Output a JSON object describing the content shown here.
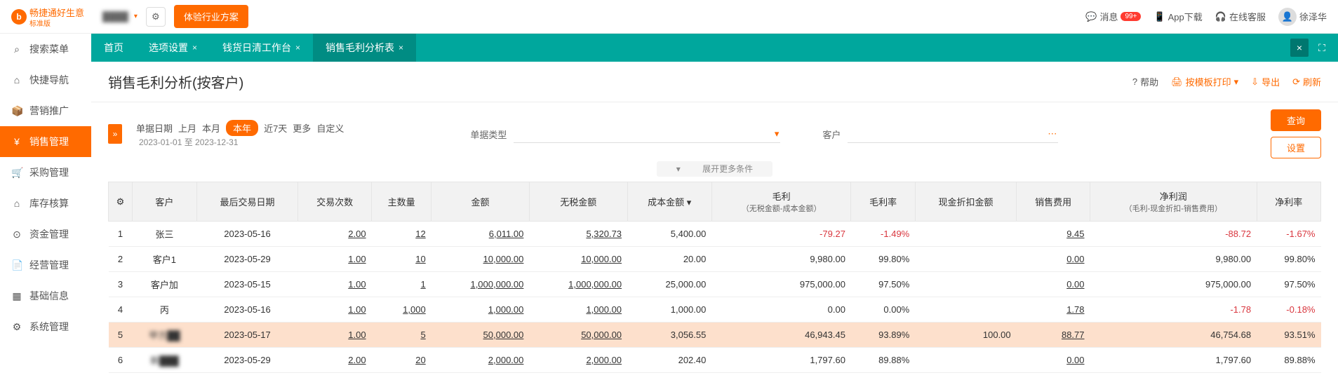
{
  "brand": {
    "name": "畅捷通好生意",
    "edition": "标准版",
    "mark": "b"
  },
  "org": {
    "name": "████"
  },
  "cta": "体验行业方案",
  "topbar": {
    "msg": "消息",
    "msg_badge": "99+",
    "app": "App下载",
    "support": "在线客服",
    "user": "徐泽华"
  },
  "sidebar": [
    {
      "icon": "⌕",
      "label": "搜索菜单"
    },
    {
      "icon": "⌂",
      "label": "快捷导航"
    },
    {
      "icon": "📦",
      "label": "营销推广"
    },
    {
      "icon": "¥",
      "label": "销售管理",
      "active": true
    },
    {
      "icon": "🛒",
      "label": "采购管理"
    },
    {
      "icon": "⌂",
      "label": "库存核算"
    },
    {
      "icon": "⊙",
      "label": "资金管理"
    },
    {
      "icon": "📄",
      "label": "经营管理"
    },
    {
      "icon": "▦",
      "label": "基础信息"
    },
    {
      "icon": "⚙",
      "label": "系统管理"
    }
  ],
  "tabs": {
    "items": [
      {
        "label": "首页",
        "closable": false
      },
      {
        "label": "选项设置",
        "closable": true
      },
      {
        "label": "钱货日清工作台",
        "closable": true
      },
      {
        "label": "销售毛利分析表",
        "closable": true,
        "active": true
      }
    ]
  },
  "page": {
    "title": "销售毛利分析(按客户)",
    "tools": {
      "help": "帮助",
      "print": "按模板打印",
      "export": "导出",
      "refresh": "刷新"
    }
  },
  "filters": {
    "date_label": "单据日期",
    "quick": {
      "last_month": "上月",
      "this_month": "本月",
      "this_year": "本年",
      "last7": "近7天",
      "more": "更多",
      "custom": "自定义"
    },
    "date_range": "2023-01-01 至 2023-12-31",
    "doc_type_label": "单据类型",
    "client_label": "客户",
    "query": "查询",
    "setup": "设置",
    "expand": "展开更多条件"
  },
  "table": {
    "columns": {
      "gear": "⚙",
      "client": "客户",
      "last_date": "最后交易日期",
      "txn_cnt": "交易次数",
      "main_qty": "主数量",
      "amount": "金额",
      "amount_notax": "无税金额",
      "cost": "成本金额",
      "gross": "毛利",
      "gross_sub": "（无税金额-成本金额）",
      "gross_rate": "毛利率",
      "cash_disc": "现金折扣金额",
      "sales_exp": "销售费用",
      "net": "净利润",
      "net_sub": "（毛利-现金折扣-销售费用）",
      "net_rate": "净利率"
    },
    "rows": [
      {
        "idx": "1",
        "client": "张三",
        "last": "2023-05-16",
        "cnt": "2.00",
        "qty": "12",
        "amt": "6,011.00",
        "nt": "5,320.73",
        "cost": "5,400.00",
        "gross": "-79.27",
        "gross_neg": true,
        "grate": "-1.49%",
        "grate_neg": true,
        "disc": "",
        "exp": "9.45",
        "net": "-88.72",
        "net_neg": true,
        "nrate": "-1.67%",
        "nrate_neg": true
      },
      {
        "idx": "2",
        "client": "客户1",
        "last": "2023-05-29",
        "cnt": "1.00",
        "qty": "10",
        "amt": "10,000.00",
        "nt": "10,000.00",
        "cost": "20.00",
        "gross": "9,980.00",
        "grate": "99.80%",
        "disc": "",
        "exp": "0.00",
        "net": "9,980.00",
        "nrate": "99.80%"
      },
      {
        "idx": "3",
        "client": "客户加",
        "last": "2023-05-15",
        "cnt": "1.00",
        "qty": "1",
        "amt": "1,000,000.00",
        "nt": "1,000,000.00",
        "cost": "25,000.00",
        "gross": "975,000.00",
        "grate": "97.50%",
        "disc": "",
        "exp": "0.00",
        "net": "975,000.00",
        "nrate": "97.50%"
      },
      {
        "idx": "4",
        "client": "丙",
        "last": "2023-05-16",
        "cnt": "1.00",
        "qty": "1,000",
        "amt": "1,000.00",
        "nt": "1,000.00",
        "cost": "1,000.00",
        "gross": "0.00",
        "grate": "0.00%",
        "disc": "",
        "exp": "1.78",
        "net": "-1.78",
        "net_neg": true,
        "nrate": "-0.18%",
        "nrate_neg": true
      },
      {
        "idx": "5",
        "client": "甲方██",
        "blur": true,
        "hl": true,
        "last": "2023-05-17",
        "cnt": "1.00",
        "qty": "5",
        "amt": "50,000.00",
        "nt": "50,000.00",
        "cost": "3,056.55",
        "gross": "46,943.45",
        "grate": "93.89%",
        "disc": "100.00",
        "exp": "88.77",
        "net": "46,754.68",
        "nrate": "93.51%"
      },
      {
        "idx": "6",
        "client": "新███",
        "blur": true,
        "last": "2023-05-29",
        "cnt": "2.00",
        "qty": "20",
        "amt": "2,000.00",
        "nt": "2,000.00",
        "cost": "202.40",
        "gross": "1,797.60",
        "grate": "89.88%",
        "disc": "",
        "exp": "0.00",
        "net": "1,797.60",
        "nrate": "89.88%"
      }
    ]
  }
}
